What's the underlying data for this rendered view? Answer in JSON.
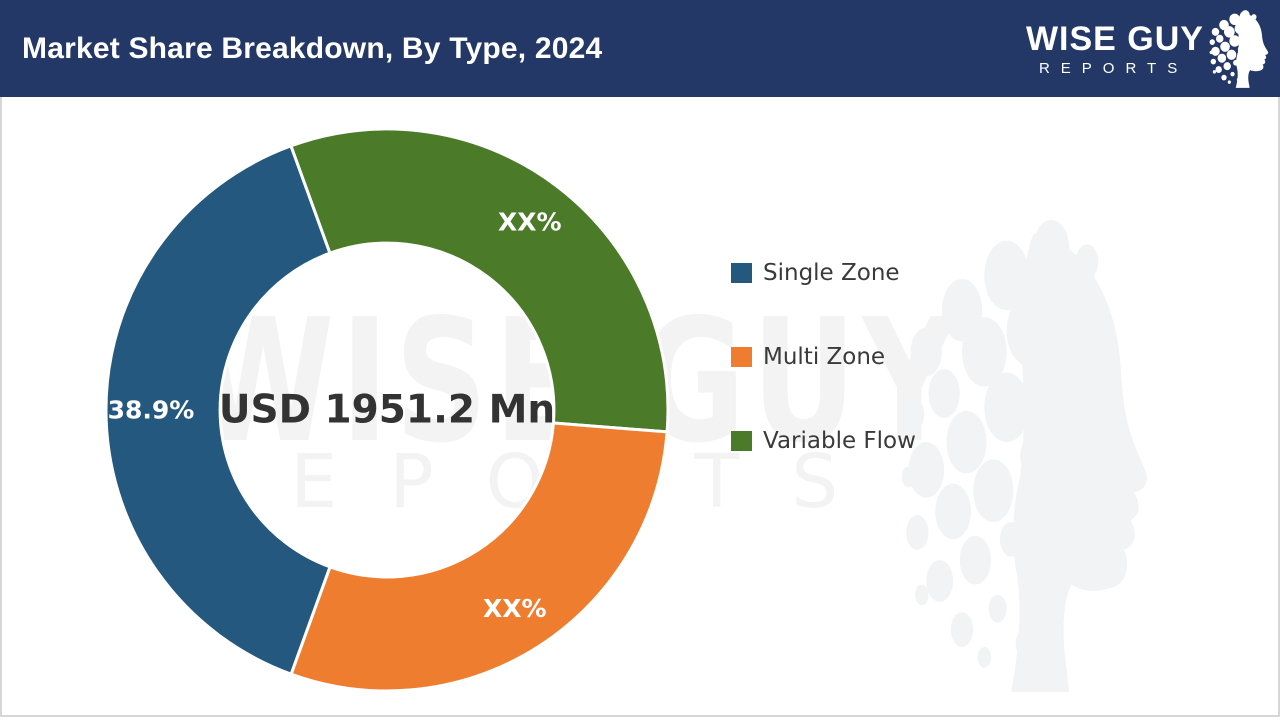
{
  "header": {
    "title": "Market Share Breakdown, By Type, 2024",
    "logo": {
      "line1": "WISE GUY",
      "line2": "REPORTS"
    }
  },
  "watermark": {
    "line1": "WISE GUY",
    "line2": "REPORTS"
  },
  "colors": {
    "header_bg": "#233866",
    "page_border": "#d6d6d6",
    "watermark": "#f3f3f4",
    "center_text": "#333333",
    "legend_text": "#3a3a3a",
    "single_zone_blue": "#24587e",
    "multi_zone_orange": "#ee7d30",
    "variable_flow_green": "#4b7b29"
  },
  "chart_data": {
    "type": "pie",
    "subtype": "donut",
    "title": "Market Share Breakdown, By Type, 2024",
    "center_label": "USD 1951.2 Mn",
    "start_angle_deg": -20,
    "inner_radius_ratio": 0.594,
    "legend_position": "right",
    "segments": [
      {
        "label": "Variable Flow",
        "display_label": "XX%",
        "percent": 31.8,
        "color": "#4b7b29"
      },
      {
        "label": "Multi Zone",
        "display_label": "XX%",
        "percent": 29.3,
        "color": "#ee7d30"
      },
      {
        "label": "Single Zone",
        "display_label": "38.9%",
        "percent": 38.9,
        "color": "#24587e"
      }
    ],
    "legend": [
      {
        "label": "Single Zone",
        "color": "#24587e"
      },
      {
        "label": "Multi Zone",
        "color": "#ee7d30"
      },
      {
        "label": "Variable Flow",
        "color": "#4b7b29"
      }
    ]
  }
}
